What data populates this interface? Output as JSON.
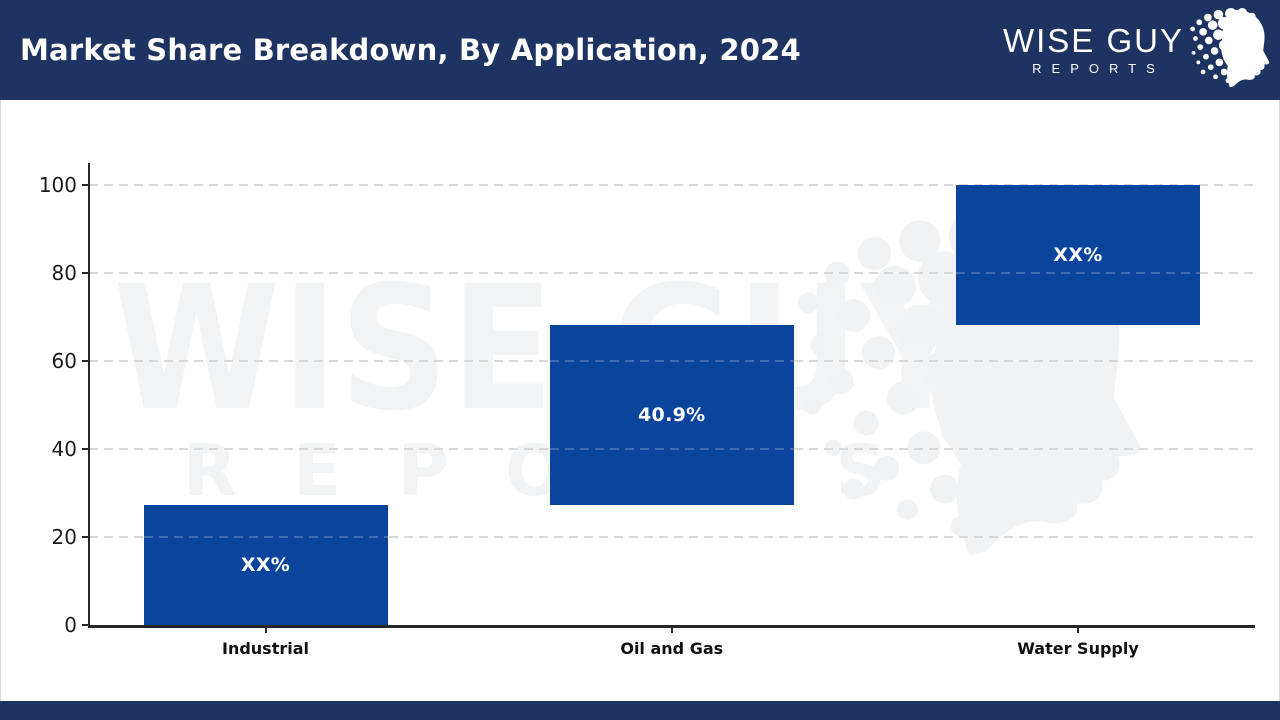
{
  "header": {
    "title": "Market Share Breakdown, By Application, 2024",
    "logo": {
      "wordmark": "WISE GUY",
      "subtitle": "REPORTS"
    }
  },
  "watermark": {
    "wordmark": "WISE GUY",
    "subtitle": "R E P O R T S"
  },
  "chart_data": {
    "type": "bar",
    "subtype": "floating-waterfall-segments",
    "title": "Market Share Breakdown, By Application, 2024",
    "categories": [
      "Industrial",
      "Oil and Gas",
      "Water Supply"
    ],
    "bars": [
      {
        "category": "Industrial",
        "start": 0,
        "end": 27.2,
        "label": "XX%"
      },
      {
        "category": "Oil and Gas",
        "start": 27.2,
        "end": 68.1,
        "label": "40.9%"
      },
      {
        "category": "Water Supply",
        "start": 68.1,
        "end": 100,
        "label": "XX%"
      }
    ],
    "xlabel": "",
    "ylabel": "",
    "yticks": [
      0,
      20,
      40,
      60,
      80,
      100
    ],
    "ylim": [
      0,
      105
    ],
    "grid": "horizontal-dashed",
    "legend": "none",
    "bar_color": "#0a449c"
  },
  "colors": {
    "header_bg": "#1f3362",
    "footer_bg": "#1f3362",
    "bar": "#0a449c",
    "bar_label_text": "#ffffff",
    "grid": "#d8d8d8",
    "axis": "#262626",
    "tick_text": "#1a1a1a",
    "watermark": "#f2f3f5"
  }
}
